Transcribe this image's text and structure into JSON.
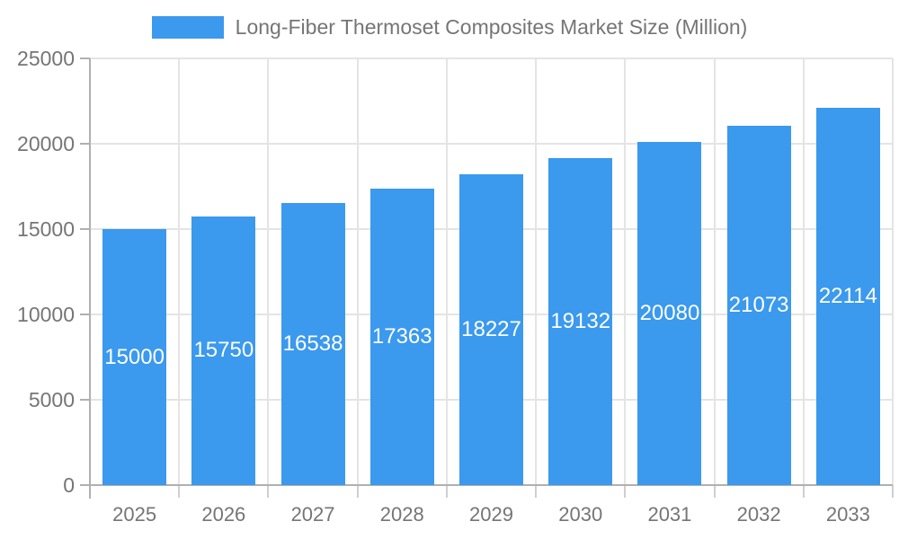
{
  "legend": {
    "label": "Long-Fiber Thermoset Composites Market Size (Million)"
  },
  "chart_data": {
    "type": "bar",
    "title": "Long-Fiber Thermoset Composites Market Size (Million)",
    "series_name": "Long-Fiber Thermoset Composites Market Size (Million)",
    "categories": [
      "2025",
      "2026",
      "2027",
      "2028",
      "2029",
      "2030",
      "2031",
      "2032",
      "2033"
    ],
    "values": [
      15000,
      15750,
      16538,
      17363,
      18227,
      19132,
      20080,
      21073,
      22114
    ],
    "bar_labels": [
      "15000",
      "15750",
      "16538",
      "17363",
      "18227",
      "19132",
      "20080",
      "21073",
      "22114"
    ],
    "xlabel": "",
    "ylabel": "",
    "ylim": [
      0,
      25000
    ],
    "yticks": [
      0,
      5000,
      10000,
      15000,
      20000,
      25000
    ],
    "ytick_labels": [
      "0",
      "5000",
      "10000",
      "15000",
      "20000",
      "25000"
    ],
    "grid": true,
    "legend_position": "top",
    "colors": {
      "bar": "#3B99EE",
      "bar_label_text": "#FFFFFF",
      "axis_text": "#757575",
      "gridline": "#E4E4E4",
      "axis_line": "#B0B0B0",
      "tick": "#CFCFCF",
      "background": "#FFFFFF"
    }
  }
}
